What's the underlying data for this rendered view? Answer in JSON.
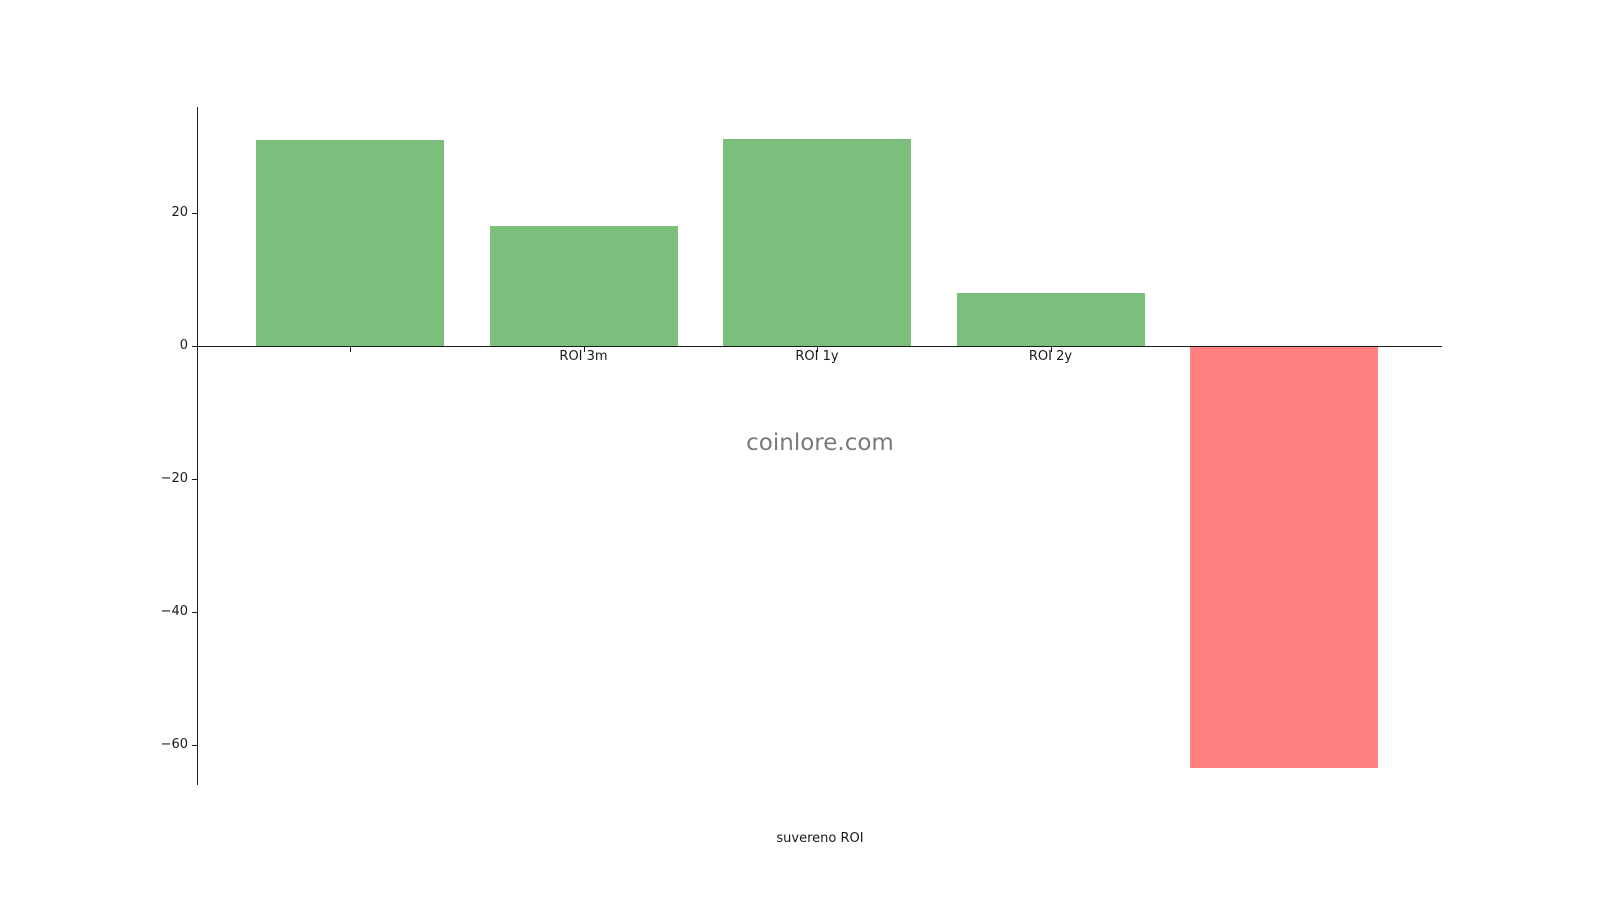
{
  "watermark": "coinlore.com",
  "chart_data": {
    "type": "bar",
    "title": "",
    "xlabel": "suvereno ROI",
    "ylabel": "",
    "categories": [
      "",
      "ROI 3m",
      "ROI 1y",
      "ROI 2y",
      ""
    ],
    "values": [
      31,
      18,
      31.2,
      8,
      -63.5
    ],
    "colors": [
      "#7cbf7c",
      "#7cbf7c",
      "#7cbf7c",
      "#7cbf7c",
      "#ff8181"
    ],
    "positive_color": "#7cbf7c",
    "negative_color": "#ff8181",
    "ylim": [
      -66,
      36
    ],
    "yticks": [
      {
        "label": "20",
        "value": 20
      },
      {
        "label": "0",
        "value": 0
      },
      {
        "label": "−20",
        "value": -20
      },
      {
        "label": "−40",
        "value": -40
      },
      {
        "label": "−60",
        "value": -60
      }
    ],
    "xtick_indices": [
      0,
      1,
      2,
      3
    ],
    "grid": false,
    "legend": "none"
  }
}
